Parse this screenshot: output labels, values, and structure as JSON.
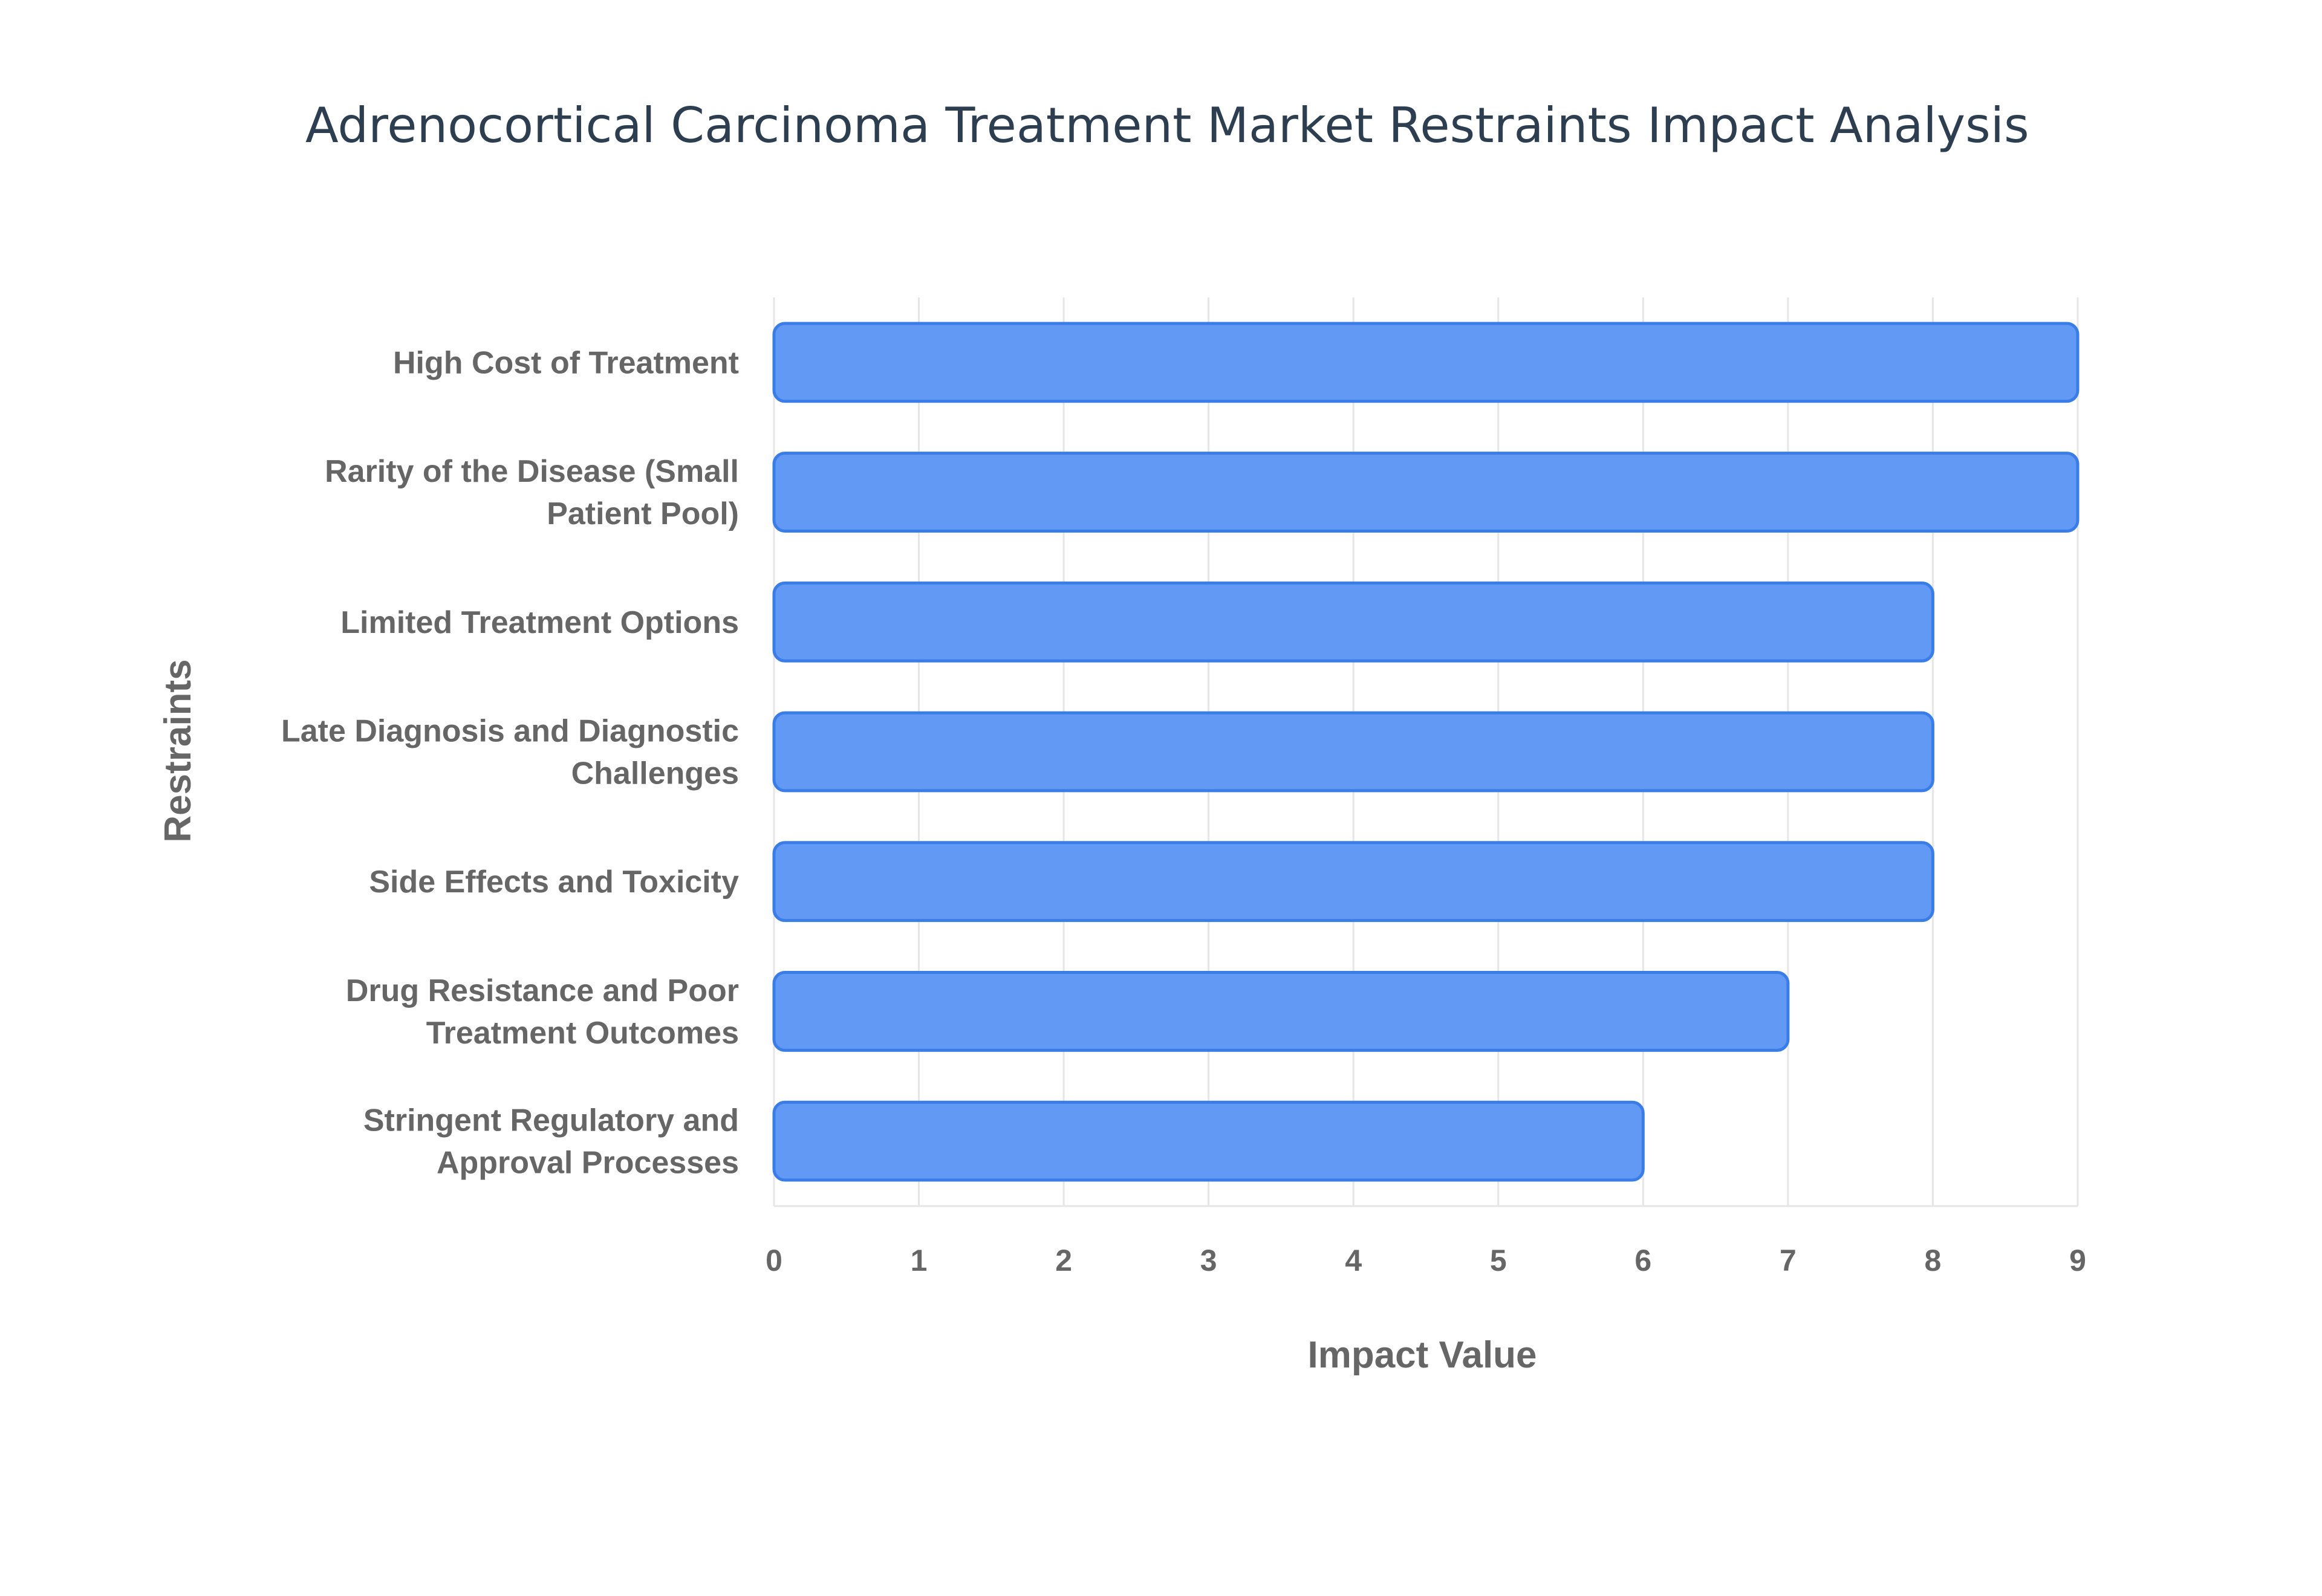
{
  "chart_data": {
    "type": "bar",
    "orientation": "horizontal",
    "title": "Adrenocortical Carcinoma Treatment Market Restraints Impact Analysis",
    "xlabel": "Impact Value",
    "ylabel": "Restraints",
    "categories": [
      "High Cost of Treatment",
      "Rarity of the Disease (Small Patient Pool)",
      "Limited Treatment Options",
      "Late Diagnosis and Diagnostic Challenges",
      "Side Effects and Toxicity",
      "Drug Resistance and Poor Treatment Outcomes",
      "Stringent Regulatory and Approval Processes"
    ],
    "category_lines": [
      [
        "High Cost of Treatment"
      ],
      [
        "Rarity of the Disease (Small",
        "Patient Pool)"
      ],
      [
        "Limited Treatment Options"
      ],
      [
        "Late Diagnosis and Diagnostic",
        "Challenges"
      ],
      [
        "Side Effects and Toxicity"
      ],
      [
        "Drug Resistance and Poor",
        "Treatment Outcomes"
      ],
      [
        "Stringent Regulatory and",
        "Approval Processes"
      ]
    ],
    "values": [
      9,
      9,
      8,
      8,
      8,
      7,
      6
    ],
    "xlim": [
      0,
      9
    ],
    "xticks": [
      0,
      1,
      2,
      3,
      4,
      5,
      6,
      7,
      8,
      9
    ],
    "grid": true,
    "legend": "none",
    "colors": {
      "bar_fill": "#6199f5",
      "bar_stroke": "#3b7de6"
    }
  }
}
